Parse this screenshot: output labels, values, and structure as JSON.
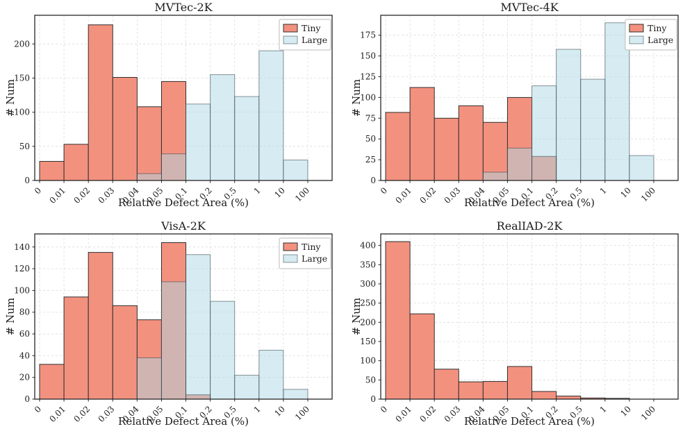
{
  "style": {
    "background": "#ffffff",
    "tiny_color": "#F3917F",
    "large_color": "#ADD8E6",
    "large_fill_opacity": 0.5,
    "bar_edge": "#2F2F2F",
    "large_bar_edge": "rgba(45,62,70,0.55)",
    "grid_color": "#DCDCDC",
    "spine_color": "#262626",
    "legend_border": "#BBBBBB",
    "text_color": "#1b1b1b"
  },
  "chart_data": [
    {
      "id": "mvtec-2k",
      "type": "bar",
      "title": "MVTec-2K",
      "xlabel": "Relative Defect Area (%)",
      "ylabel": "# Num",
      "bin_edges": [
        "0",
        "0.01",
        "0.02",
        "0.03",
        "0.04",
        "0.05",
        "0.1",
        "0.2",
        "0.5",
        "1",
        "10",
        "100"
      ],
      "y_ticks": [
        0,
        50,
        100,
        150,
        200
      ],
      "ylim": [
        0,
        242
      ],
      "grid": "dashed",
      "legend": {
        "visible": true,
        "position": "upper-right",
        "entries": [
          "Tiny",
          "Large"
        ]
      },
      "series": [
        {
          "name": "Tiny",
          "values": [
            28,
            53,
            228,
            151,
            108,
            145,
            0,
            0,
            0,
            0,
            0
          ]
        },
        {
          "name": "Large",
          "values": [
            0,
            0,
            0,
            0,
            10,
            39,
            112,
            155,
            123,
            190,
            30
          ]
        }
      ]
    },
    {
      "id": "mvtec-4k",
      "type": "bar",
      "title": "MVTec-4K",
      "xlabel": "Relative Defect Area (%)",
      "ylabel": "# Num",
      "bin_edges": [
        "0",
        "0.01",
        "0.02",
        "0.03",
        "0.04",
        "0.05",
        "0.1",
        "0.2",
        "0.5",
        "1",
        "10",
        "100"
      ],
      "y_ticks": [
        0,
        25,
        50,
        75,
        100,
        125,
        150,
        175
      ],
      "ylim": [
        0,
        199
      ],
      "grid": "dashed",
      "legend": {
        "visible": true,
        "position": "upper-right",
        "entries": [
          "Tiny",
          "Large"
        ]
      },
      "series": [
        {
          "name": "Tiny",
          "values": [
            82,
            112,
            75,
            90,
            70,
            100,
            29,
            0,
            0,
            0,
            0
          ]
        },
        {
          "name": "Large",
          "values": [
            0,
            0,
            0,
            0,
            10,
            39,
            114,
            158,
            122,
            190,
            30
          ]
        }
      ]
    },
    {
      "id": "visa-2k",
      "type": "bar",
      "title": "VisA-2K",
      "xlabel": "Relative Defect Area (%)",
      "ylabel": "# Num",
      "bin_edges": [
        "0",
        "0.01",
        "0.02",
        "0.03",
        "0.04",
        "0.05",
        "0.1",
        "0.2",
        "0.5",
        "1",
        "10",
        "100"
      ],
      "y_ticks": [
        0,
        20,
        40,
        60,
        80,
        100,
        120,
        140
      ],
      "ylim": [
        0,
        152
      ],
      "grid": "dashed",
      "legend": {
        "visible": true,
        "position": "upper-right",
        "entries": [
          "Tiny",
          "Large"
        ]
      },
      "series": [
        {
          "name": "Tiny",
          "values": [
            32,
            94,
            135,
            86,
            73,
            144,
            4,
            0,
            0,
            0,
            0
          ]
        },
        {
          "name": "Large",
          "values": [
            0,
            0,
            0,
            0,
            38,
            108,
            133,
            90,
            22,
            45,
            9
          ]
        }
      ]
    },
    {
      "id": "realiad-2k",
      "type": "bar",
      "title": "RealIAD-2K",
      "xlabel": "Relative Defect Area (%)",
      "ylabel": "# Num",
      "bin_edges": [
        "0",
        "0.01",
        "0.02",
        "0.03",
        "0.04",
        "0.05",
        "0.1",
        "0.2",
        "0.5",
        "1",
        "10",
        "100"
      ],
      "y_ticks": [
        0,
        50,
        100,
        150,
        200,
        250,
        300,
        350,
        400
      ],
      "ylim": [
        0,
        430
      ],
      "grid": "dashed",
      "legend": {
        "visible": false,
        "position": null,
        "entries": []
      },
      "series": [
        {
          "name": "Tiny",
          "values": [
            410,
            222,
            78,
            45,
            46,
            85,
            20,
            8,
            3,
            2,
            0
          ]
        }
      ]
    }
  ]
}
